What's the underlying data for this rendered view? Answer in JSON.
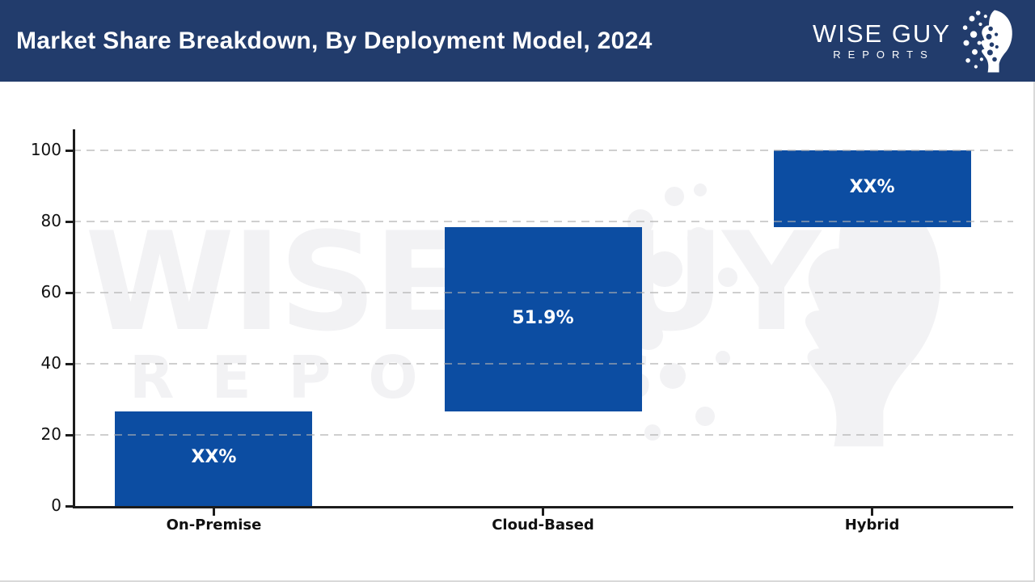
{
  "header": {
    "title": "Market Share Breakdown, By Deployment Model, 2024",
    "logo": {
      "line1": "WISE GUY",
      "line2": "REPORTS"
    }
  },
  "watermark": {
    "line1": "WISE GUY",
    "line2": "REPORTS"
  },
  "colors": {
    "header_bg": "#223C6C",
    "bar": "#0C4DA2",
    "grid": "rgba(175,175,175,0.6)",
    "axis": "#1c1c1c",
    "watermark": "#f2f2f4",
    "title_text": "#ffffff"
  },
  "chart_data": {
    "type": "bar",
    "variant": "waterfall",
    "title": "Market Share Breakdown, By Deployment Model, 2024",
    "xlabel": "",
    "ylabel": "",
    "ylim": [
      0,
      100
    ],
    "yticks": [
      0,
      20,
      40,
      60,
      80,
      100
    ],
    "grid": "dashed horizontal",
    "legend": "none",
    "categories": [
      "On-Premise",
      "Cloud-Based",
      "Hybrid"
    ],
    "bars": [
      {
        "category": "On-Premise",
        "base": 0,
        "top": 26.6,
        "label": "XX%"
      },
      {
        "category": "Cloud-Based",
        "base": 26.6,
        "top": 78.5,
        "label": "51.9%"
      },
      {
        "category": "Hybrid",
        "base": 78.5,
        "top": 100,
        "label": "XX%"
      }
    ]
  }
}
